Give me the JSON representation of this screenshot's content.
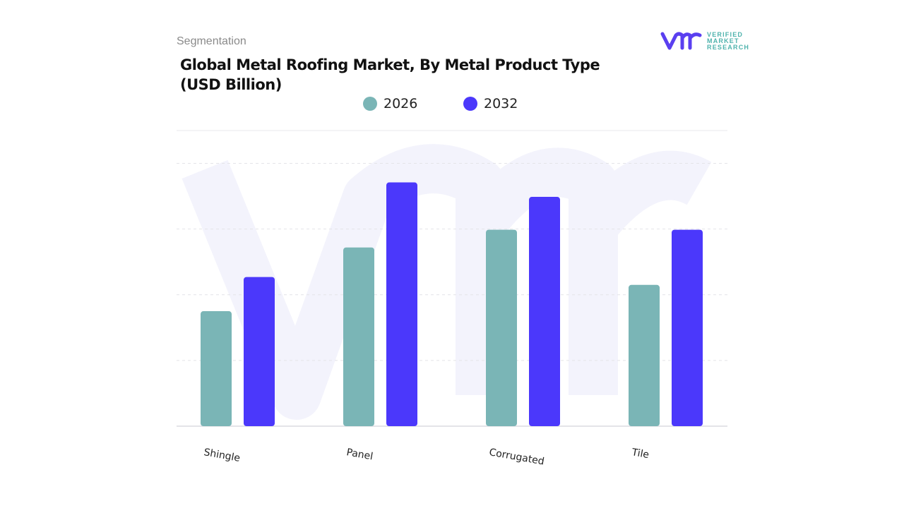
{
  "header": {
    "section": "Segmentation",
    "title": "Global Metal Roofing Market, By Metal Product Type (USD Billion)"
  },
  "logo": {
    "mark": "vmr",
    "lines": [
      "VERIFIED",
      "MARKET",
      "RESEARCH"
    ]
  },
  "chart_data": {
    "type": "bar",
    "title": "Global Metal Roofing Market, By Metal Product Type (USD Billion)",
    "categories": [
      "Shingle",
      "Panel",
      "Corrugated",
      "Tile"
    ],
    "series": [
      {
        "name": "2026",
        "color": "#7ab5b6",
        "values": [
          1.75,
          2.72,
          2.99,
          2.15
        ]
      },
      {
        "name": "2032",
        "color": "#4b38fb",
        "values": [
          2.27,
          3.71,
          3.49,
          2.99
        ]
      }
    ],
    "ylim": [
      0,
      4.5
    ],
    "y_tick_labels_shown": false,
    "grid": true,
    "legend_position": "top",
    "xlabel": "",
    "ylabel": ""
  }
}
